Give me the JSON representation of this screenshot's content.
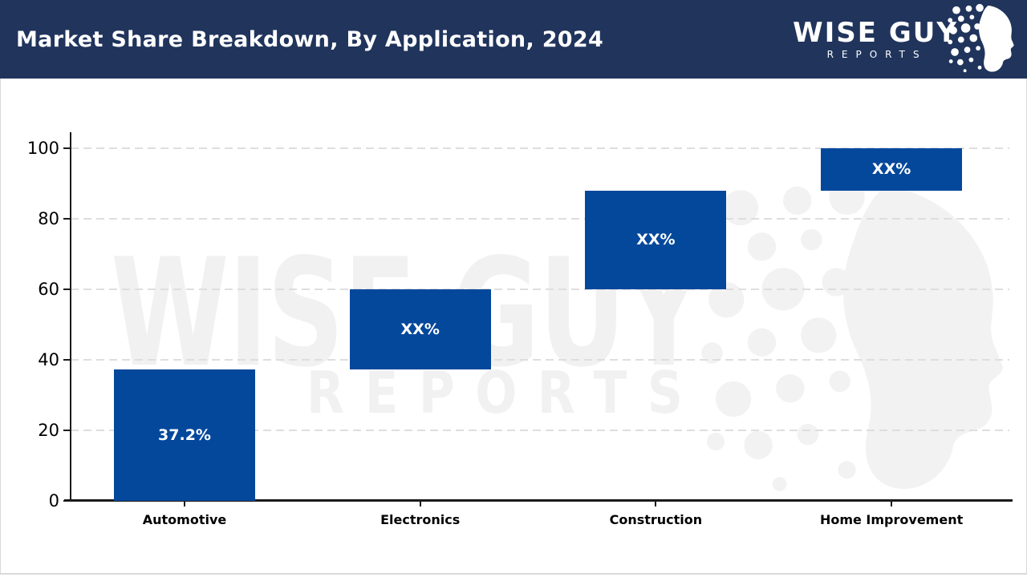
{
  "header": {
    "title": "Market Share Breakdown, By Application, 2024",
    "logo": {
      "line1": "WISE GUY",
      "line2": "REPORTS"
    }
  },
  "watermark": {
    "line1": "WISE GUY",
    "line2": "REPORTS"
  },
  "chart_data": {
    "type": "bar",
    "subtype": "waterfall",
    "title": "Market Share Breakdown, By Application, 2024",
    "categories": [
      "Automotive",
      "Electronics",
      "Construction",
      "Home Improvement"
    ],
    "series": [
      {
        "name": "Market Share",
        "segments": [
          {
            "category": "Automotive",
            "start": 0,
            "end": 37.2,
            "value": 37.2,
            "label": "37.2%"
          },
          {
            "category": "Electronics",
            "start": 37.2,
            "end": 60,
            "value": 22.8,
            "label": "XX%"
          },
          {
            "category": "Construction",
            "start": 60,
            "end": 88,
            "value": 28,
            "label": "XX%"
          },
          {
            "category": "Home Improvement",
            "start": 88,
            "end": 100,
            "value": 12,
            "label": "XX%"
          }
        ]
      }
    ],
    "xlabel": "",
    "ylabel": "",
    "ylim": [
      0,
      100
    ],
    "yticks": [
      0,
      20,
      40,
      60,
      80,
      100
    ],
    "grid": "horizontal dashed",
    "legend": "none",
    "colors": {
      "bar": "#04489c",
      "bar_label": "#ffffff",
      "header_background": "#20345c",
      "header_text": "#ffffff",
      "gridline": "#dedede",
      "axis": "#1a1a1a",
      "watermark": "#f1f1f2"
    }
  }
}
